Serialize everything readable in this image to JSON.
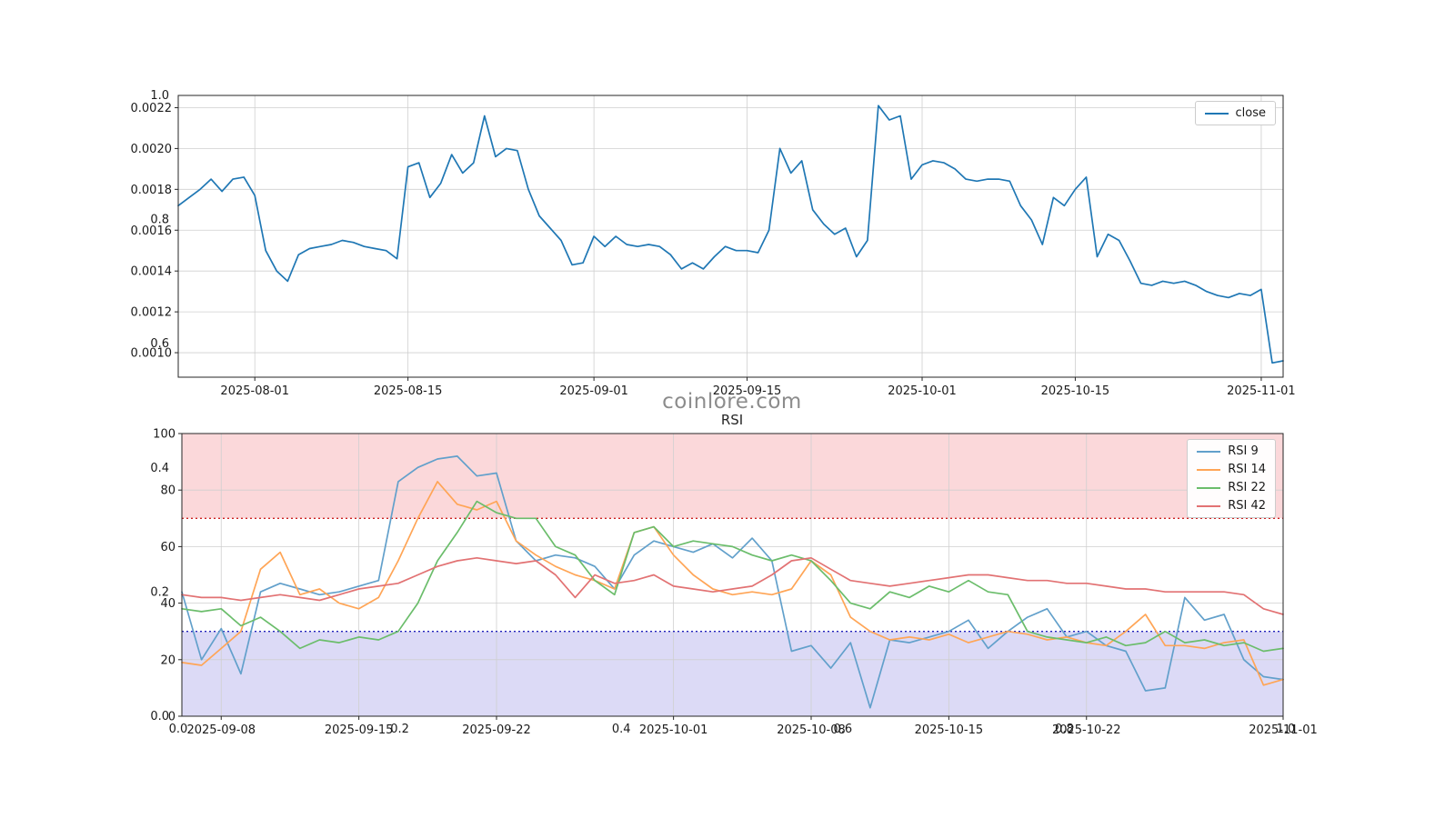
{
  "watermark": "coinlore.com",
  "overlay_axis": {
    "labels": [
      "0.0",
      "0.2",
      "0.4",
      "0.6",
      "0.8",
      "1.0"
    ]
  },
  "chart_data": [
    {
      "type": "line",
      "title": "",
      "legend_position": "upper right",
      "grid": true,
      "ylim": [
        0.00088,
        0.00226
      ],
      "yticks": [
        {
          "value": 0.001,
          "label": "0.0010"
        },
        {
          "value": 0.0012,
          "label": "0.0012"
        },
        {
          "value": 0.0014,
          "label": "0.0014"
        },
        {
          "value": 0.0016,
          "label": "0.0016"
        },
        {
          "value": 0.0018,
          "label": "0.0018"
        },
        {
          "value": 0.002,
          "label": "0.0020"
        },
        {
          "value": 0.0022,
          "label": "0.0022"
        }
      ],
      "xticks": [
        {
          "index": 7,
          "label": "2025-08-01"
        },
        {
          "index": 21,
          "label": "2025-08-15"
        },
        {
          "index": 38,
          "label": "2025-09-01"
        },
        {
          "index": 52,
          "label": "2025-09-15"
        },
        {
          "index": 68,
          "label": "2025-10-01"
        },
        {
          "index": 82,
          "label": "2025-10-15"
        },
        {
          "index": 99,
          "label": "2025-11-01"
        }
      ],
      "series": [
        {
          "name": "close",
          "color": "#1f77b4",
          "values": [
            0.00172,
            0.00176,
            0.0018,
            0.00185,
            0.00179,
            0.00185,
            0.00186,
            0.00177,
            0.0015,
            0.0014,
            0.00135,
            0.00148,
            0.00151,
            0.00152,
            0.00153,
            0.00155,
            0.00154,
            0.00152,
            0.00151,
            0.0015,
            0.00146,
            0.00191,
            0.00193,
            0.00176,
            0.00183,
            0.00197,
            0.00188,
            0.00193,
            0.00216,
            0.00196,
            0.002,
            0.00199,
            0.0018,
            0.00167,
            0.00161,
            0.00155,
            0.00143,
            0.00144,
            0.00157,
            0.00152,
            0.00157,
            0.00153,
            0.00152,
            0.00153,
            0.00152,
            0.00148,
            0.00141,
            0.00144,
            0.00141,
            0.00147,
            0.00152,
            0.0015,
            0.0015,
            0.00149,
            0.0016,
            0.002,
            0.00188,
            0.00194,
            0.0017,
            0.00163,
            0.00158,
            0.00161,
            0.00147,
            0.00155,
            0.00221,
            0.00214,
            0.00216,
            0.00185,
            0.00192,
            0.00194,
            0.00193,
            0.0019,
            0.00185,
            0.00184,
            0.00185,
            0.00185,
            0.00184,
            0.00172,
            0.00165,
            0.00153,
            0.00176,
            0.00172,
            0.0018,
            0.00186,
            0.00147,
            0.00158,
            0.00155,
            0.00145,
            0.00134,
            0.00133,
            0.00135,
            0.00134,
            0.00135,
            0.00133,
            0.0013,
            0.00128,
            0.00127,
            0.00129,
            0.00128,
            0.00131,
            0.00095,
            0.00096
          ]
        }
      ]
    },
    {
      "type": "line",
      "title": "RSI",
      "legend_position": "upper right",
      "grid": true,
      "ylim": [
        0,
        100
      ],
      "overbought_level": 70,
      "oversold_level": 30,
      "colors": {
        "overbought_band": "#fbd8da",
        "oversold_band": "#dcdaf6",
        "overbought_line": "#cc2222",
        "oversold_line": "#2222bb"
      },
      "yticks": [
        {
          "value": 0,
          "label": "0"
        },
        {
          "value": 20,
          "label": "20"
        },
        {
          "value": 40,
          "label": "40"
        },
        {
          "value": 60,
          "label": "60"
        },
        {
          "value": 80,
          "label": "80"
        },
        {
          "value": 100,
          "label": "100"
        }
      ],
      "xticks": [
        {
          "index": 2,
          "label": "2025-09-08"
        },
        {
          "index": 9,
          "label": "2025-09-15"
        },
        {
          "index": 16,
          "label": "2025-09-22"
        },
        {
          "index": 25,
          "label": "2025-10-01"
        },
        {
          "index": 32,
          "label": "2025-10-08"
        },
        {
          "index": 39,
          "label": "2025-10-15"
        },
        {
          "index": 46,
          "label": "2025-10-22"
        },
        {
          "index": 56,
          "label": "2025-11-01"
        }
      ],
      "series": [
        {
          "name": "RSI 9",
          "color": "#62a0cb",
          "values": [
            44,
            20,
            31,
            15,
            44,
            47,
            45,
            43,
            44,
            46,
            48,
            83,
            88,
            91,
            92,
            85,
            86,
            62,
            55,
            57,
            56,
            53,
            45,
            57,
            62,
            60,
            58,
            61,
            56,
            63,
            55,
            23,
            25,
            17,
            26,
            3,
            27,
            26,
            28,
            30,
            34,
            24,
            30,
            35,
            38,
            28,
            30,
            25,
            23,
            9,
            10,
            42,
            34,
            36,
            20,
            14,
            13
          ]
        },
        {
          "name": "RSI 14",
          "color": "#ffa556",
          "values": [
            19,
            18,
            24,
            30,
            52,
            58,
            43,
            45,
            40,
            38,
            42,
            55,
            70,
            83,
            75,
            73,
            76,
            62,
            57,
            53,
            50,
            48,
            45,
            65,
            67,
            57,
            50,
            45,
            43,
            44,
            43,
            45,
            55,
            50,
            35,
            30,
            27,
            28,
            27,
            29,
            26,
            28,
            30,
            29,
            27,
            28,
            26,
            25,
            30,
            36,
            25,
            25,
            24,
            26,
            27,
            11,
            13
          ]
        },
        {
          "name": "RSI 22",
          "color": "#6bbd6b",
          "values": [
            38,
            37,
            38,
            32,
            35,
            30,
            24,
            27,
            26,
            28,
            27,
            30,
            40,
            55,
            65,
            76,
            72,
            70,
            70,
            60,
            57,
            48,
            43,
            65,
            67,
            60,
            62,
            61,
            60,
            57,
            55,
            57,
            55,
            48,
            40,
            38,
            44,
            42,
            46,
            44,
            48,
            44,
            43,
            30,
            28,
            27,
            26,
            28,
            25,
            26,
            30,
            26,
            27,
            25,
            26,
            23,
            24
          ]
        },
        {
          "name": "RSI 42",
          "color": "#e27273",
          "values": [
            43,
            42,
            42,
            41,
            42,
            43,
            42,
            41,
            43,
            45,
            46,
            47,
            50,
            53,
            55,
            56,
            55,
            54,
            55,
            50,
            42,
            50,
            47,
            48,
            50,
            46,
            45,
            44,
            45,
            46,
            50,
            55,
            56,
            52,
            48,
            47,
            46,
            47,
            48,
            49,
            50,
            50,
            49,
            48,
            48,
            47,
            47,
            46,
            45,
            45,
            44,
            44,
            44,
            44,
            43,
            38,
            36
          ]
        }
      ]
    }
  ]
}
